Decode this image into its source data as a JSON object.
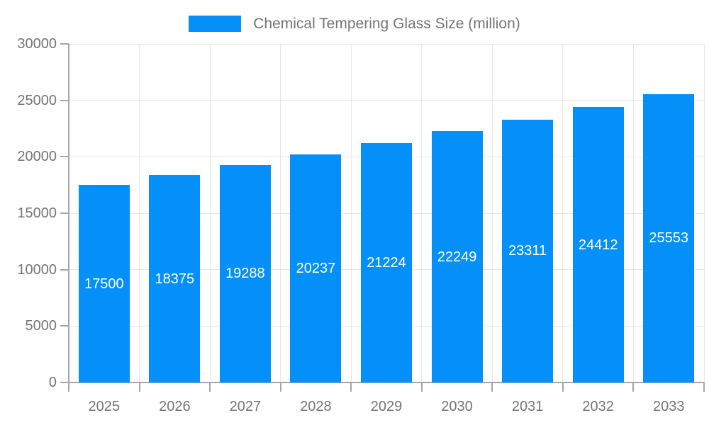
{
  "chart_data": {
    "type": "bar",
    "legend": "Chemical Tempering Glass Size (million)",
    "categories": [
      "2025",
      "2026",
      "2027",
      "2028",
      "2029",
      "2030",
      "2031",
      "2032",
      "2033"
    ],
    "values": [
      17500,
      18375,
      19288,
      20237,
      21224,
      22249,
      23311,
      24412,
      25553
    ],
    "ylim": [
      0,
      30000
    ],
    "ytick_step": 5000,
    "ytick_labels": [
      "0",
      "5000",
      "10000",
      "15000",
      "20000",
      "25000",
      "30000"
    ],
    "grid": "on",
    "legend_position": "top-center",
    "bar_labels_inside": true,
    "colors": {
      "bar": "#0490F8",
      "bar_label": "#FFFFFF",
      "grid": "#E6E6E6",
      "axis": "#A6A6A6",
      "text": "#757575"
    }
  }
}
